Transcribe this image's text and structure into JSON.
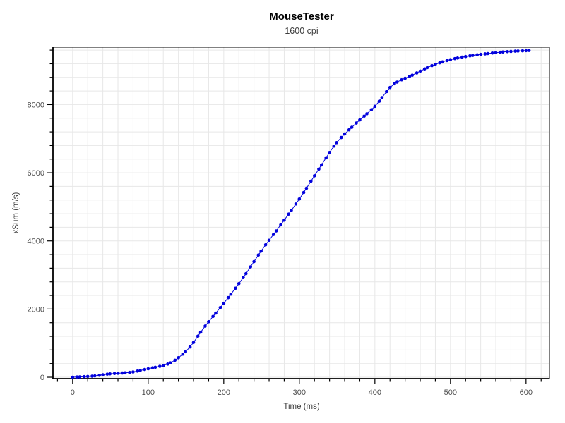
{
  "header": {
    "title": "MouseTester",
    "subtitle": "1600 cpi"
  },
  "chart_data": {
    "type": "scatter",
    "title": "MouseTester",
    "subtitle": "1600 cpi",
    "xlabel": "Time (ms)",
    "ylabel": "xSum (m/s)",
    "xlim": [
      -26,
      631
    ],
    "ylim": [
      -41,
      9685
    ],
    "x_major_ticks": [
      0,
      100,
      200,
      300,
      400,
      500,
      600
    ],
    "x_minor_step": 20,
    "x_minor_range": [
      -20,
      620
    ],
    "y_major_ticks": [
      0,
      2000,
      4000,
      6000,
      8000
    ],
    "y_minor_step": 400,
    "y_minor_range": [
      0,
      9600
    ],
    "grid": "on-minor-and-major",
    "legend": "none",
    "series": [
      {
        "name": "xSum",
        "marker": "circle",
        "marker_interval_ms": 5,
        "x": [
          0,
          25,
          50,
          75,
          100,
          125,
          150,
          175,
          200,
          225,
          250,
          275,
          300,
          325,
          350,
          375,
          400,
          425,
          450,
          475,
          500,
          525,
          550,
          575,
          600,
          604
        ],
        "y": [
          0,
          30,
          100,
          140,
          250,
          380,
          760,
          1490,
          2170,
          2900,
          3720,
          4460,
          5230,
          6080,
          6900,
          7450,
          7950,
          8600,
          8870,
          9140,
          9320,
          9430,
          9500,
          9555,
          9585,
          9590
        ]
      }
    ]
  },
  "colors": {
    "series_blue": "#0202dd",
    "grid": "#e7e7e7",
    "axis_line": "#000000",
    "tick_label": "#4d4d4d",
    "subtitle_gray": "#3d3d3d",
    "background": "#ffffff"
  }
}
